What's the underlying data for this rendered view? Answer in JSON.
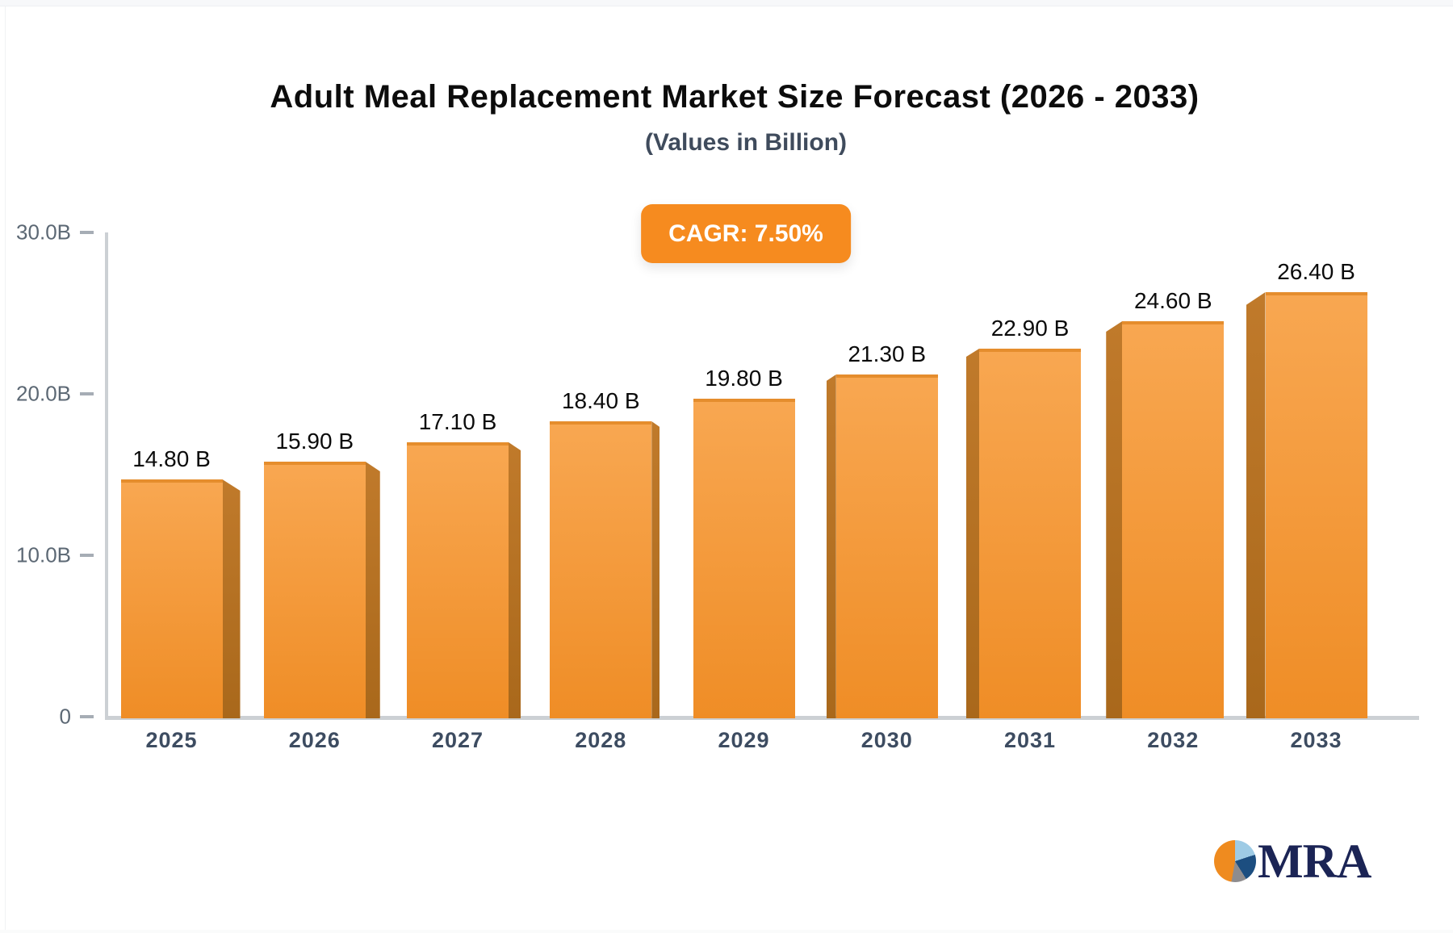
{
  "header": {
    "title": "Adult Meal Replacement Market Size Forecast (2026 - 2033)",
    "subtitle": "(Values in Billion)",
    "cagr_badge": "CAGR: 7.50%"
  },
  "chart_data": {
    "type": "bar",
    "title": "Adult Meal Replacement Market Size Forecast (2026 - 2033)",
    "subtitle": "(Values in Billion)",
    "cagr": "7.50%",
    "categories": [
      "2025",
      "2026",
      "2027",
      "2028",
      "2029",
      "2030",
      "2031",
      "2032",
      "2033"
    ],
    "values": [
      14.8,
      15.9,
      17.1,
      18.4,
      19.8,
      21.3,
      22.9,
      24.6,
      26.4
    ],
    "bar_labels": [
      "14.80 B",
      "15.90 B",
      "17.10 B",
      "18.40 B",
      "19.80 B",
      "21.30 B",
      "22.90 B",
      "24.60 B",
      "26.40 B"
    ],
    "xlabel": "",
    "ylabel": "",
    "ylim": [
      0,
      30
    ],
    "yticks": [
      {
        "value": 30,
        "label": "30.0B"
      },
      {
        "value": 20,
        "label": "20.0B"
      },
      {
        "value": 10,
        "label": "10.0B"
      },
      {
        "value": 0,
        "label": "0"
      }
    ],
    "grid": "off",
    "legend": "none",
    "bar_style": "3d-perspective"
  },
  "logo": {
    "text": "MRA"
  },
  "colors": {
    "title_color": "#0c0c0c",
    "subtitle_color": "#3f4b5c",
    "badge_bg": "#f68b1f",
    "bar_top": "#f8a751",
    "bar_bottom": "#ef8d26",
    "bar_edge": "#e58d2d",
    "bar_side_1": "#c07a2b",
    "bar_side_2": "#a9681b",
    "axis_line": "#ccd0d4",
    "tick_dash": "#a6adb5",
    "ytick_color": "#5c6874",
    "xlabel_color": "#3d4c61",
    "value_color": "#0b0b0b",
    "logo_navy": "#1b2455",
    "pie_orange": "#ef8b1f",
    "pie_blue": "#9ecbe5",
    "pie_navy": "#1c4e80",
    "pie_gray": "#8e8c8e"
  }
}
